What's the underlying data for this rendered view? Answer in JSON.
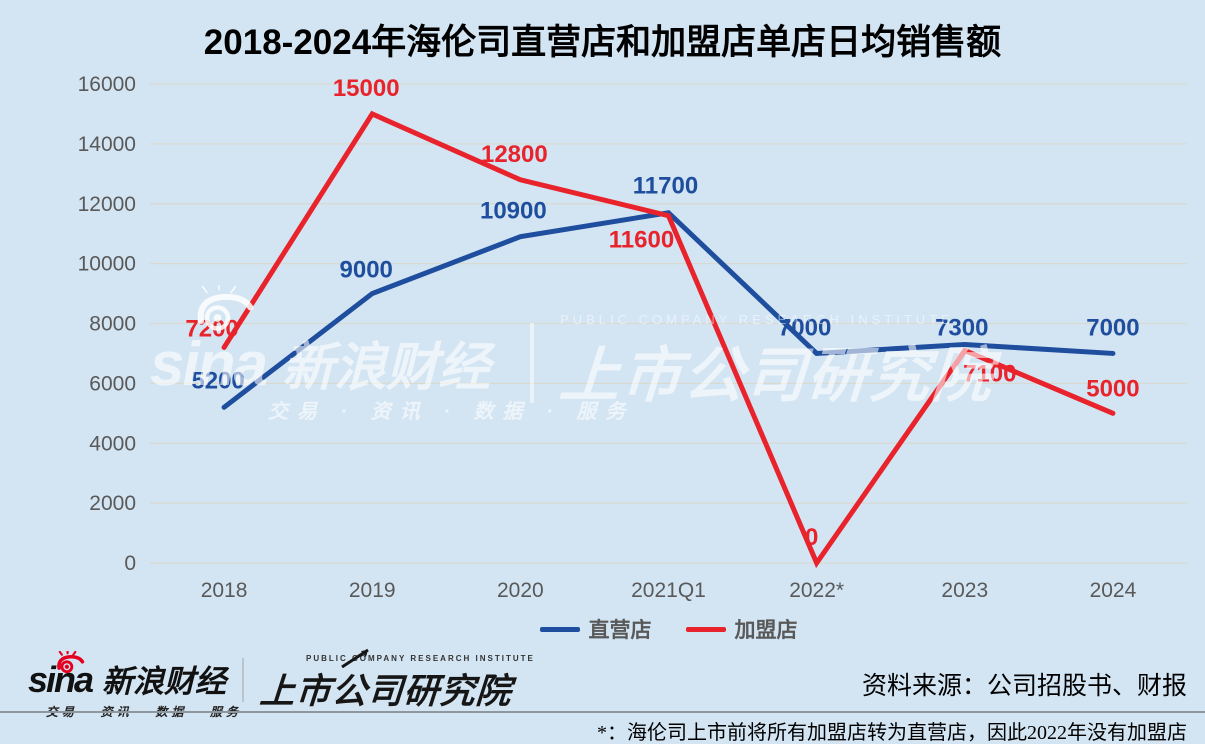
{
  "title": "2018-2024年海伦司直营店和加盟店单店日均销售额",
  "chart_data": {
    "type": "line",
    "categories": [
      "2018",
      "2019",
      "2020",
      "2021Q1",
      "2022*",
      "2023",
      "2024"
    ],
    "series": [
      {
        "name": "直营店",
        "color": "#1F4E9E",
        "values": [
          5200,
          9000,
          10900,
          11700,
          7000,
          7300,
          7000
        ]
      },
      {
        "name": "加盟店",
        "color": "#E8232B",
        "values": [
          7200,
          15000,
          12800,
          11600,
          0,
          7100,
          5000
        ]
      }
    ],
    "yticks": [
      0,
      2000,
      4000,
      6000,
      8000,
      10000,
      12000,
      14000,
      16000
    ],
    "ylim": [
      0,
      16000
    ],
    "xlabel": "",
    "ylabel": "",
    "grid": "horizontal",
    "legend_position": "bottom",
    "label_offsets": [
      [
        [
          -6,
          -27
        ],
        [
          -6,
          -24
        ],
        [
          -7,
          -26
        ],
        [
          -3,
          -27
        ],
        [
          -12,
          -26
        ],
        [
          -3,
          -17
        ],
        [
          0,
          -26
        ]
      ],
      [
        [
          -12,
          -19
        ],
        [
          -6,
          -26
        ],
        [
          -6,
          -26
        ],
        [
          -27,
          24
        ],
        [
          -5,
          -26
        ],
        [
          25,
          23
        ],
        [
          0,
          -25
        ]
      ]
    ]
  },
  "colors": {
    "background": "#D3E5F3",
    "grid_line": "#D9D9D2",
    "tick_text": "#595959",
    "direct_store_blue": "#1F4E9E",
    "franchise_store_red": "#E8232B",
    "sina_red": "#E6001F"
  },
  "watermark": {
    "sina_logo_text": "sina",
    "sina_brand": "新浪财经",
    "sina_tagline": "交易 · 资讯 · 数据 · 服务",
    "institute_en": "PUBLIC COMPANY RESEARCH INSTITUTE",
    "institute": "上市公司研究院"
  },
  "footer": {
    "sina_logo_text": "sina",
    "sina_brand": "新浪财经",
    "sina_tagline": "交易 · 资讯 · 数据 · 服务",
    "institute_en": "PUBLIC COMPANY RESEARCH INSTITUTE",
    "institute": "上市公司研究院",
    "source": "资料来源：公司招股书、财报",
    "footnote": "*：海伦司上市前将所有加盟店转为直营店，因此2022年没有加盟店"
  }
}
